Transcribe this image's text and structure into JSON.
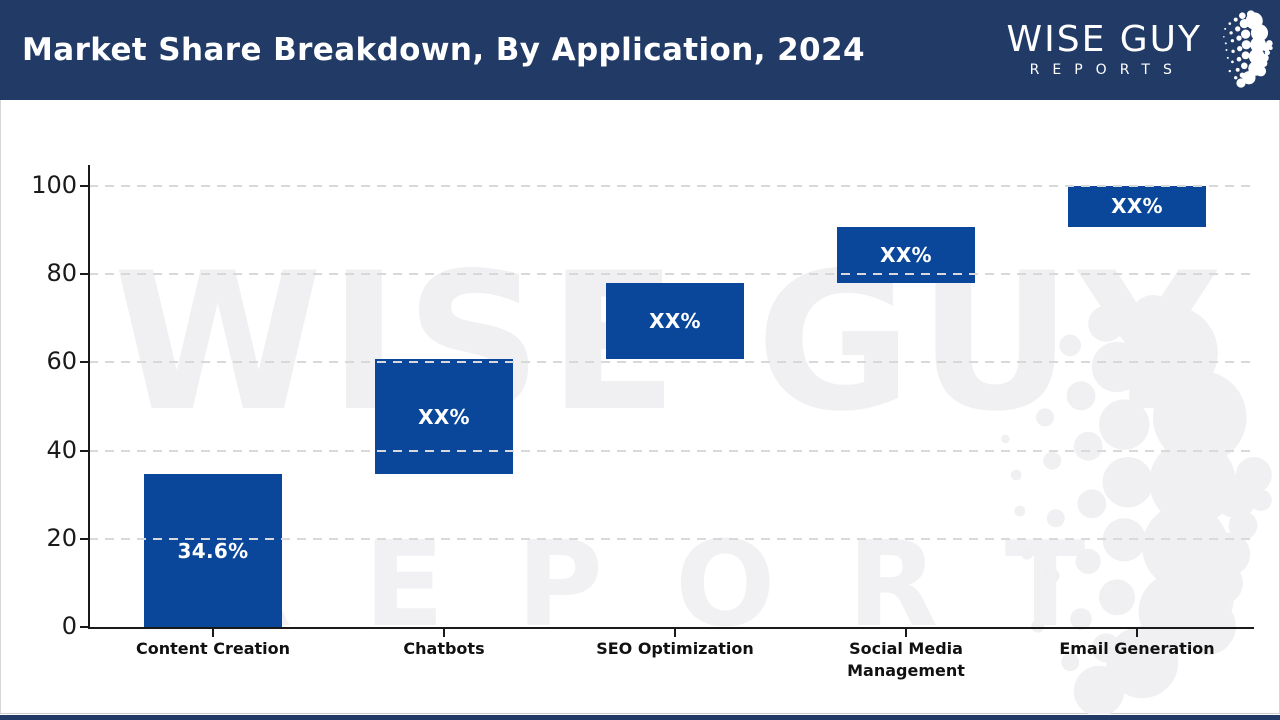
{
  "header": {
    "title": "Market Share Breakdown, By Application, 2024",
    "logo": {
      "line1": "WISE GUY",
      "line2": "REPORTS"
    }
  },
  "watermark": {
    "line1": "WISE GUY",
    "line2": "REPORTS"
  },
  "colors": {
    "header_navy": "#213a66",
    "bar_blue": "#0a4699",
    "gridline_gray": "#d9d9d9",
    "axis_dark": "#1a1a1a",
    "watermark_gray": "#f0f0f2"
  },
  "chart_data": {
    "type": "bar",
    "subtype": "stacked-waterfall",
    "title": "Market Share Breakdown, By Application, 2024",
    "categories": [
      "Content Creation",
      "Chatbots",
      "SEO Optimization",
      "Social Media Management",
      "Email Generation"
    ],
    "series": [
      {
        "name": "Market share (%)",
        "segments": [
          {
            "category": "Content Creation",
            "start": 0,
            "end": 34.6,
            "label": "34.6%"
          },
          {
            "category": "Chatbots",
            "start": 34.6,
            "end": 60.8,
            "label": "XX%"
          },
          {
            "category": "SEO Optimization",
            "start": 60.8,
            "end": 78,
            "label": "XX%"
          },
          {
            "category": "Social Media Management",
            "start": 78,
            "end": 90.8,
            "label": "XX%"
          },
          {
            "category": "Email Generation",
            "start": 90.8,
            "end": 100,
            "label": "XX%"
          }
        ]
      }
    ],
    "xlabel": "",
    "ylabel": "",
    "ylim": [
      0,
      100
    ],
    "yticks": [
      0,
      20,
      40,
      60,
      80,
      100
    ],
    "grid": "horizontal-dashed",
    "legend": "none",
    "bar_color": "#0a4699"
  }
}
